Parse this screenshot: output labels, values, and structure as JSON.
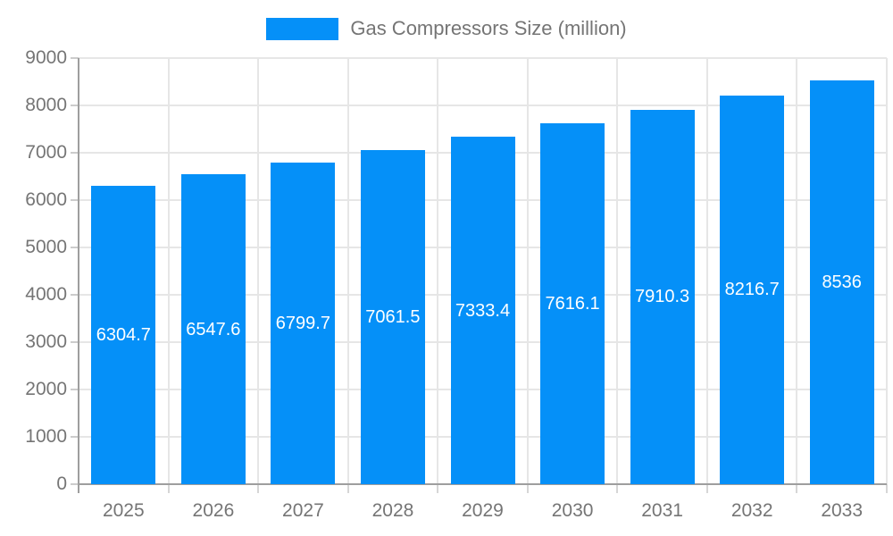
{
  "legend": {
    "label": "Gas Compressors Size (million)"
  },
  "chart_data": {
    "type": "bar",
    "title": "Gas Compressors Size (million)",
    "categories": [
      "2025",
      "2026",
      "2027",
      "2028",
      "2029",
      "2030",
      "2031",
      "2032",
      "2033"
    ],
    "values": [
      6304.7,
      6547.6,
      6799.7,
      7061.5,
      7333.4,
      7616.1,
      7910.3,
      8216.7,
      8536
    ],
    "value_labels": [
      "6304.7",
      "6547.6",
      "6799.7",
      "7061.5",
      "7333.4",
      "7616.1",
      "7910.3",
      "8216.7",
      "8536"
    ],
    "xlabel": "",
    "ylabel": "",
    "ylim": [
      0,
      9000
    ],
    "ytick_step": 1000,
    "ytick_labels": [
      "0",
      "1000",
      "2000",
      "3000",
      "4000",
      "5000",
      "6000",
      "7000",
      "8000",
      "9000"
    ],
    "grid": true,
    "legend_position": "top",
    "bar_color": "#0590f8",
    "bar_value_label_color": "#ffffff",
    "axis_text_color": "#757575"
  }
}
